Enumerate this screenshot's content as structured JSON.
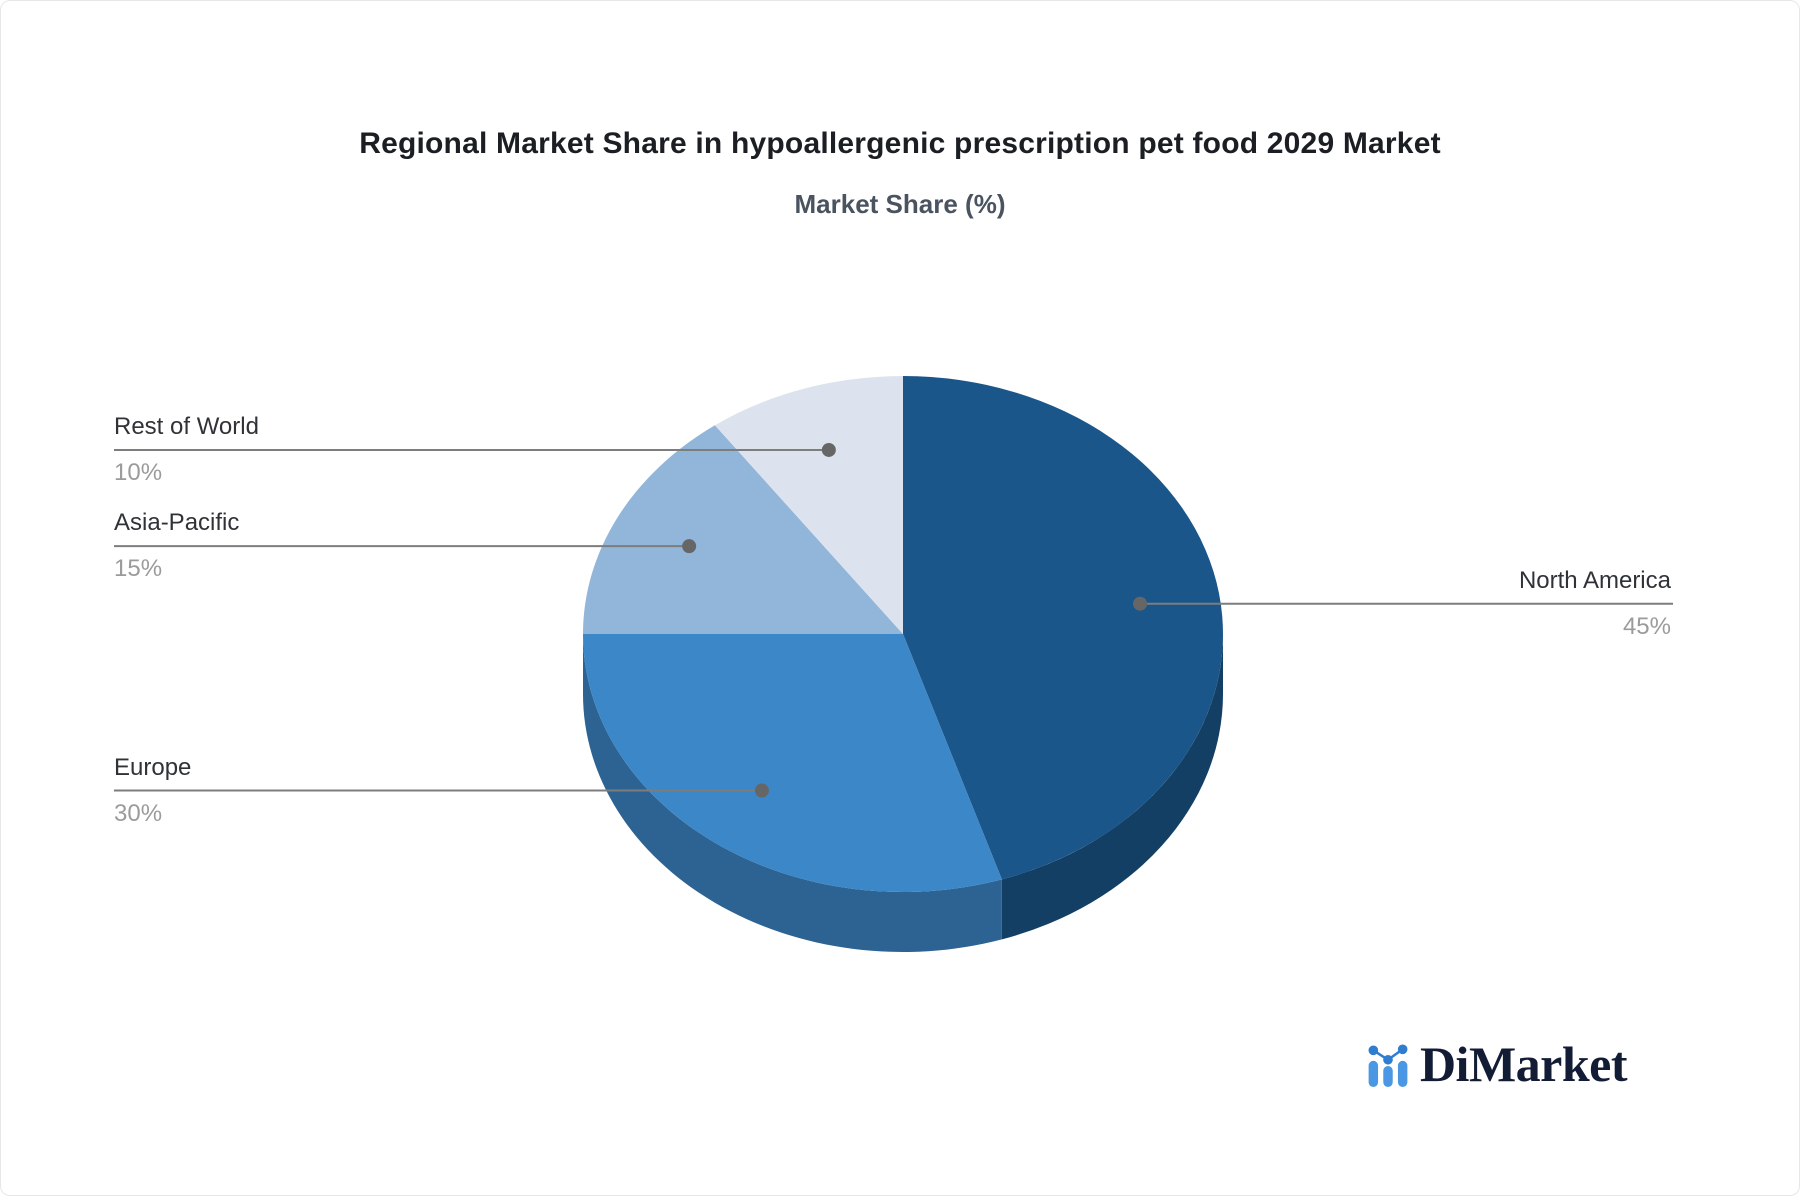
{
  "chart_data": {
    "type": "pie",
    "title": "Regional Market Share in hypoallergenic prescription pet food 2029 Market",
    "subtitle": "Market Share (%)",
    "value_suffix": "%",
    "legend_position": "callout-labels",
    "start_angle_deg": 0,
    "direction": "clockwise",
    "slices": [
      {
        "label": "North America",
        "value": 45,
        "display": "45%",
        "color": "#1a568a"
      },
      {
        "label": "Europe",
        "value": 30,
        "display": "30%",
        "color": "#3c87c8"
      },
      {
        "label": "Asia-Pacific",
        "value": 15,
        "display": "15%",
        "color": "#92b5da"
      },
      {
        "label": "Rest of World",
        "value": 10,
        "display": "10%",
        "color": "#dde3ee"
      }
    ],
    "callout_line_color": "#7d7d7d",
    "callout_dot_color": "#666666"
  },
  "branding": {
    "logo_text": "DiMarket",
    "logo_bar_color": "#4a97e3",
    "logo_dot_color": "#2e7dd1"
  }
}
